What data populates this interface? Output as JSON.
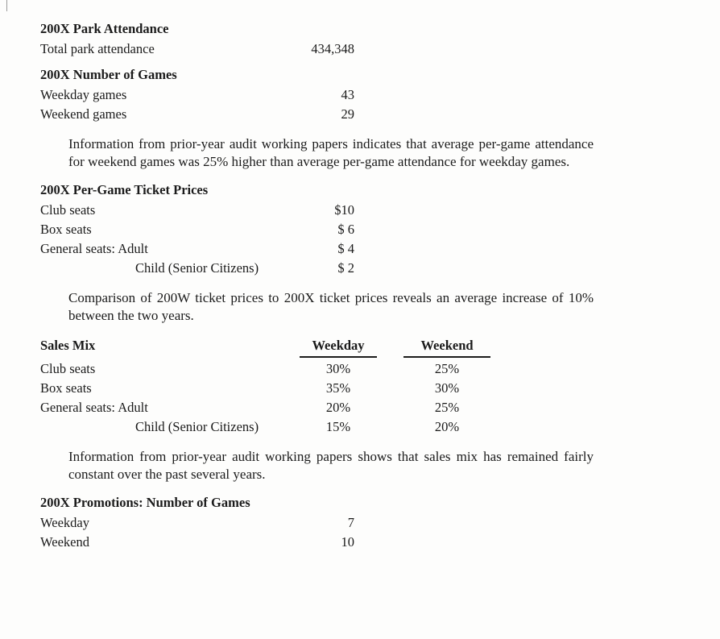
{
  "attendance": {
    "heading": "200X Park Attendance",
    "rows": [
      {
        "label": "Total park attendance",
        "value": "434,348"
      }
    ]
  },
  "games": {
    "heading": "200X Number of Games",
    "rows": [
      {
        "label": "Weekday games",
        "value": "43"
      },
      {
        "label": "Weekend games",
        "value": "29"
      }
    ]
  },
  "note_attendance": "Information from prior-year audit working papers indicates that average per-game attendance for weekend games was 25% higher than average per-game attendance for weekday games.",
  "ticket_prices": {
    "heading": "200X Per-Game Ticket Prices",
    "rows": [
      {
        "label": "Club seats",
        "value": "$10"
      },
      {
        "label": "Box seats",
        "value": "$ 6"
      },
      {
        "label": "General seats:  Adult",
        "value": "$ 4"
      },
      {
        "label": "Child (Senior Citizens)",
        "value": "$ 2"
      }
    ]
  },
  "note_prices": "Comparison of 200W ticket prices to 200X ticket prices reveals an average increase of 10% between the two years.",
  "sales_mix": {
    "heading": "Sales Mix",
    "columns": [
      "Weekday",
      "Weekend"
    ],
    "rows": [
      {
        "label": "Club seats",
        "weekday": "30%",
        "weekend": "25%"
      },
      {
        "label": "Box seats",
        "weekday": "35%",
        "weekend": "30%"
      },
      {
        "label": "General seats:  Adult",
        "weekday": "20%",
        "weekend": "25%"
      },
      {
        "label": "Child (Senior Citizens)",
        "weekday": "15%",
        "weekend": "20%"
      }
    ]
  },
  "note_sales_mix": "Information from prior-year audit working papers shows that sales mix has remained fairly constant over the past several years.",
  "promotions": {
    "heading": "200X Promotions: Number of Games",
    "rows": [
      {
        "label": "Weekday",
        "value": "7"
      },
      {
        "label": "Weekend",
        "value": "10"
      }
    ]
  }
}
